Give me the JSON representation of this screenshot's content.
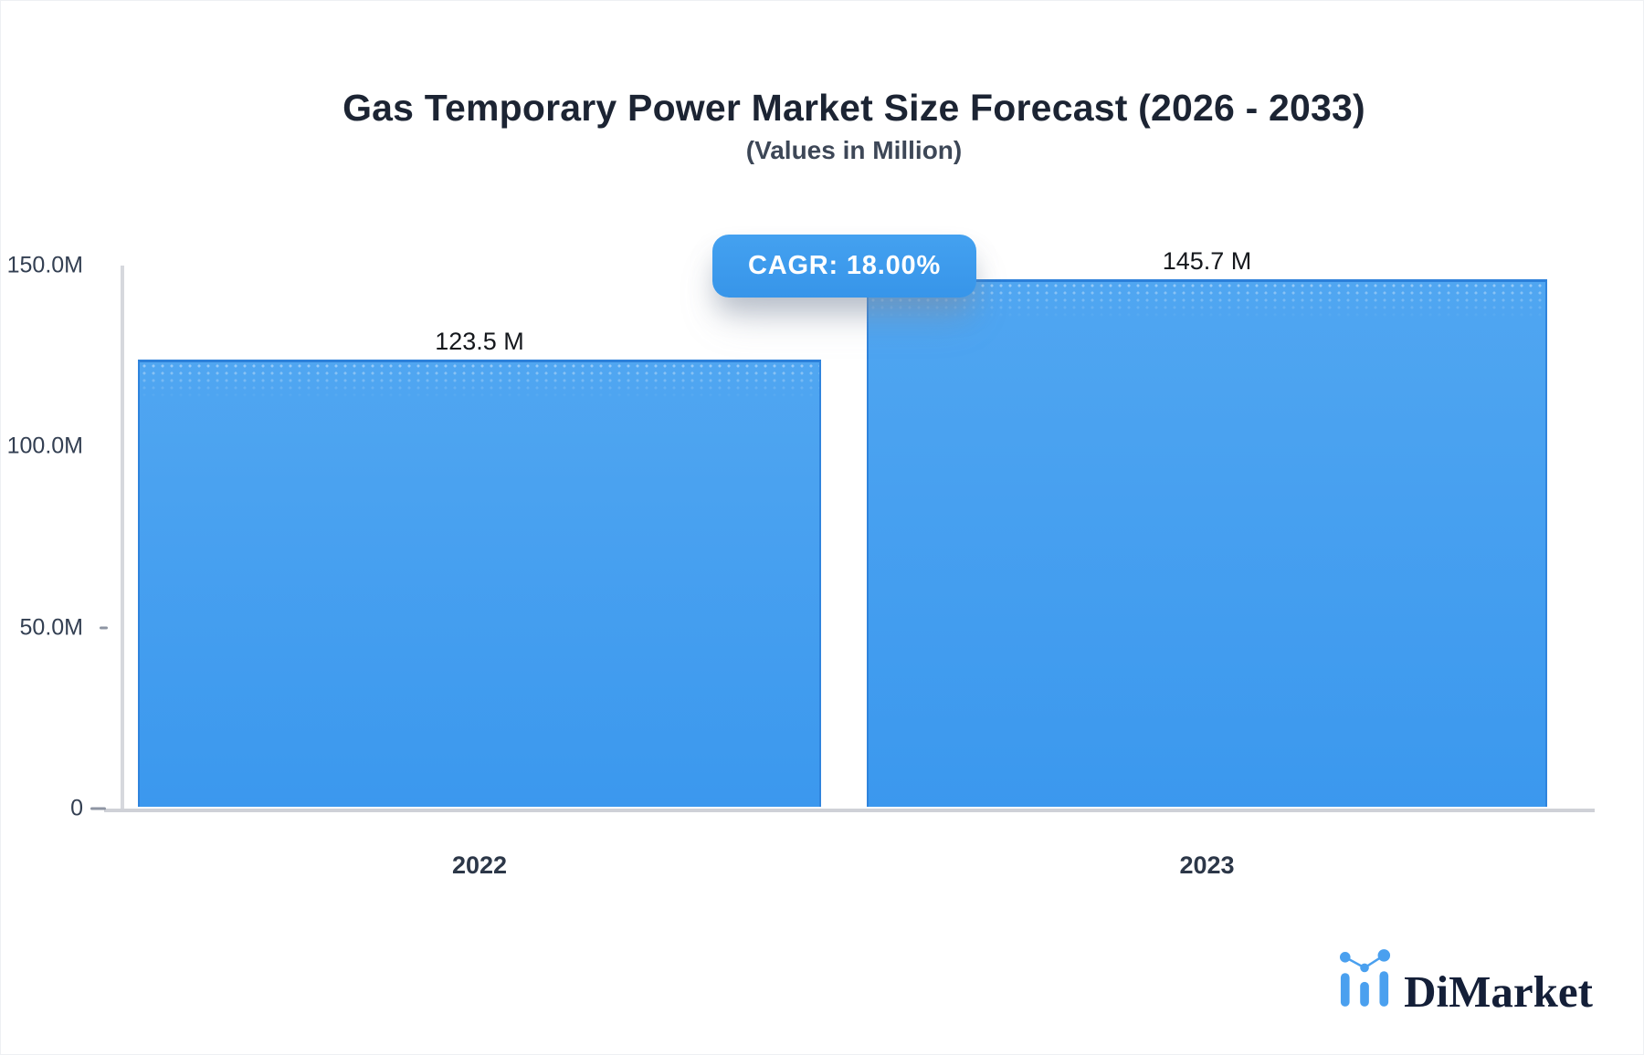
{
  "header": {
    "title": "Gas Temporary Power Market Size Forecast (2026 - 2033)",
    "subtitle": "(Values in Million)"
  },
  "cagr": {
    "label": "CAGR: 18.00%",
    "percent": 18.0
  },
  "chart_data": {
    "type": "bar",
    "title": "Gas Temporary Power Market Size Forecast (2026 - 2033)",
    "subtitle": "(Values in Million)",
    "unit": "Million",
    "categories": [
      "2022",
      "2023"
    ],
    "values": [
      123.5,
      145.7
    ],
    "value_labels": [
      "123.5 M",
      "145.7 M"
    ],
    "cagr_percent": 18.0,
    "ylim": [
      0,
      150
    ],
    "yticks": [
      {
        "label": "150.0M",
        "value": 150,
        "dash": "none"
      },
      {
        "label": "100.0M",
        "value": 100,
        "dash": "none"
      },
      {
        "label": "50.0M",
        "value": 50,
        "dash": "short"
      },
      {
        "label": "0",
        "value": 0,
        "dash": "long"
      }
    ],
    "grid": false,
    "legend": false,
    "bar_color": "#429bee",
    "bar_border_color": "#2f84dd"
  },
  "branding": {
    "name": "DiMarket",
    "icon": "bar-line-chart-icon",
    "accent": "#4aa0ef",
    "text_color": "#141f38"
  }
}
